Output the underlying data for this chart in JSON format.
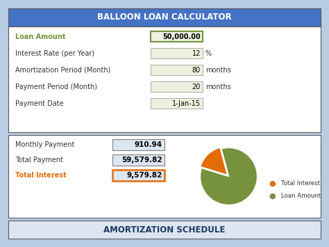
{
  "title": "BALLOON LOAN CALCULATOR",
  "footer": "AMORTIZATION SCHEDULE",
  "bg_color": "#b8cce4",
  "header_bg": "#4472c4",
  "header_text_color": "#ffffff",
  "footer_bg": "#dce6f1",
  "footer_text_color": "#1f3864",
  "section_bg": "#ffffff",
  "section_border": "#595959",
  "input_label_color": "#76923c",
  "normal_label_color": "#333333",
  "orange_label_color": "#e36c09",
  "input_box_bg": "#ebf1de",
  "input_box_border": "#76923c",
  "input_box_border_normal": "#aaaaaa",
  "value_box_bg": "#dce6f1",
  "value_box_border": "#808080",
  "orange_box_border": "#e36c09",
  "loan_amount_label": "Loan Amount",
  "loan_amount_value": "50,000.00",
  "interest_rate_label": "Interest Rate (per Year)",
  "interest_rate_value": "12",
  "interest_rate_unit": "%",
  "amort_period_label": "Amortization Period (Month)",
  "amort_period_value": "80",
  "amort_period_unit": "months",
  "payment_period_label": "Payment Period (Month)",
  "payment_period_value": "20",
  "payment_period_unit": "months",
  "payment_date_label": "Payment Date",
  "payment_date_value": "1-Jan-15",
  "monthly_payment_label": "Monthly Payment",
  "monthly_payment_value": "910.94",
  "total_payment_label": "Total Payment",
  "total_payment_value": "59,579.82",
  "total_interest_label": "Total Interest",
  "total_interest_value": "9,579.82",
  "pie_interest": 9579.82,
  "pie_loan": 50000.0,
  "pie_interest_color": "#e36c09",
  "pie_loan_color": "#76923c",
  "legend_interest_label": "Total Interest",
  "legend_loan_label": "Loan Amount"
}
